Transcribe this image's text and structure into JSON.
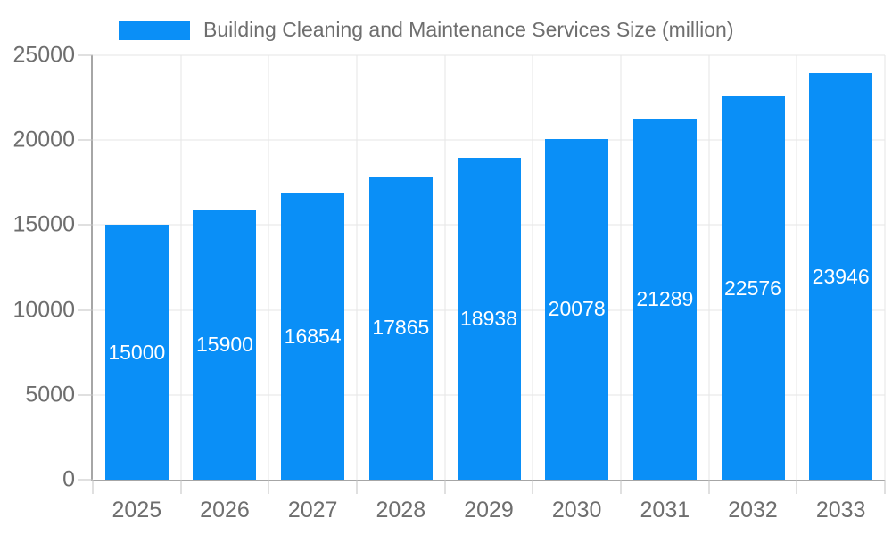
{
  "legend": {
    "label": "Building Cleaning and Maintenance Services Size (million)"
  },
  "chart_data": {
    "type": "bar",
    "title": "Building Cleaning and Maintenance Services Size (million)",
    "legend_position": "top",
    "categories": [
      "2025",
      "2026",
      "2027",
      "2028",
      "2029",
      "2030",
      "2031",
      "2032",
      "2033"
    ],
    "values": [
      15000,
      15900,
      16854,
      17865,
      18938,
      20078,
      21289,
      22576,
      23946
    ],
    "series_name": "Building Cleaning and Maintenance Services Size (million)",
    "xlabel": "",
    "ylabel": "",
    "ylim": [
      0,
      25000
    ],
    "y_ticks": [
      0,
      5000,
      10000,
      15000,
      20000,
      25000
    ],
    "grid": true,
    "bar_value_labels": "inside-center"
  },
  "colors": {
    "bar": "#0a8ff7",
    "bar_label": "#ffffff",
    "text": "#6e6e6e",
    "grid": "#e6e6e6",
    "axis": "#a6a6a6",
    "tick_mark": "#c2c2c2",
    "background": "#ffffff"
  }
}
